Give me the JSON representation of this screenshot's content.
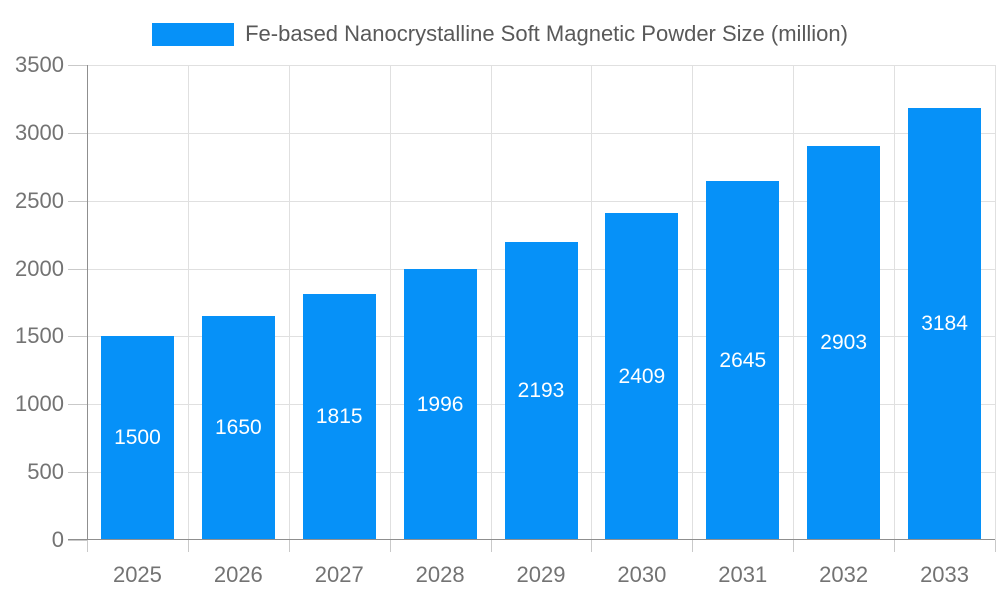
{
  "chart_data": {
    "type": "bar",
    "title": "Fe-based Nanocrystalline Soft Magnetic Powder Size (million)",
    "categories": [
      "2025",
      "2026",
      "2027",
      "2028",
      "2029",
      "2030",
      "2031",
      "2032",
      "2033"
    ],
    "values": [
      1500,
      1650,
      1815,
      1996,
      2193,
      2409,
      2645,
      2903,
      3184
    ],
    "xlabel": "",
    "ylabel": "",
    "ylim": [
      0,
      3500
    ],
    "yticks": [
      0,
      500,
      1000,
      1500,
      2000,
      2500,
      3000,
      3500
    ],
    "grid": true,
    "legend_position": "top-center",
    "colors": {
      "bar": "#0691f8",
      "bar_value_text": "#ffffff",
      "grid_line": "#e0e0e0",
      "axis_line": "#8f8f8f",
      "tick_mark": "#c9c9c9",
      "axis_label_text": "#737373",
      "legend_text": "#595959",
      "background": "#ffffff"
    }
  }
}
